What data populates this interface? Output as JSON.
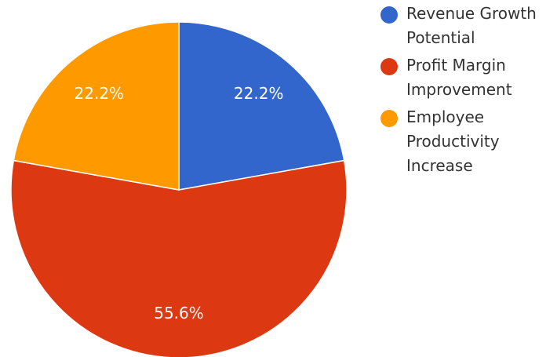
{
  "chart_data": {
    "type": "pie",
    "categories": [
      "Revenue Growth Potential",
      "Profit Margin Improvement",
      "Employee Productivity Increase"
    ],
    "values": [
      22.2,
      55.6,
      22.2
    ],
    "value_labels": [
      "22.2%",
      "55.6%",
      "22.2%"
    ],
    "colors": [
      "#3366cc",
      "#dc3912",
      "#ff9900"
    ],
    "legend": "right"
  }
}
